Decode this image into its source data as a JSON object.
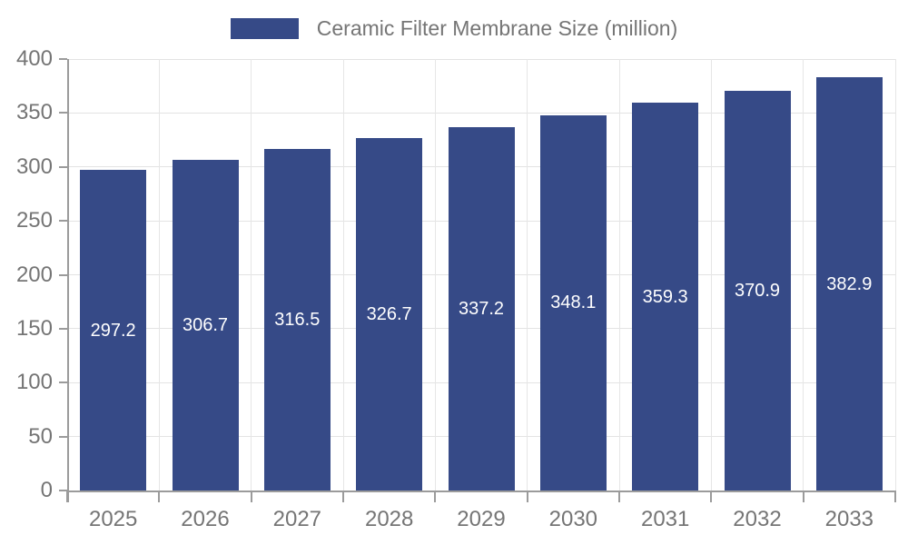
{
  "chart_data": {
    "type": "bar",
    "title": "",
    "legend": "Ceramic Filter Membrane Size (million)",
    "legend_position": "top-center",
    "categories": [
      "2025",
      "2026",
      "2027",
      "2028",
      "2029",
      "2030",
      "2031",
      "2032",
      "2033"
    ],
    "values": [
      297.2,
      306.7,
      316.5,
      326.7,
      337.2,
      348.1,
      359.3,
      370.9,
      382.9
    ],
    "value_labels": [
      "297.2",
      "306.7",
      "316.5",
      "326.7",
      "337.2",
      "348.1",
      "359.3",
      "370.9",
      "382.9"
    ],
    "xlabel": "",
    "ylabel": "",
    "ylim": [
      0,
      400
    ],
    "yticks": [
      0,
      50,
      100,
      150,
      200,
      250,
      300,
      350,
      400
    ],
    "grid": true
  },
  "colors": {
    "bar_fill": "#364A87",
    "value_label_text": "#ffffff",
    "axis_line": "#9b9b9b",
    "gridline": "#e3e3e3",
    "tick_text": "#757575",
    "legend_text": "#757575"
  }
}
